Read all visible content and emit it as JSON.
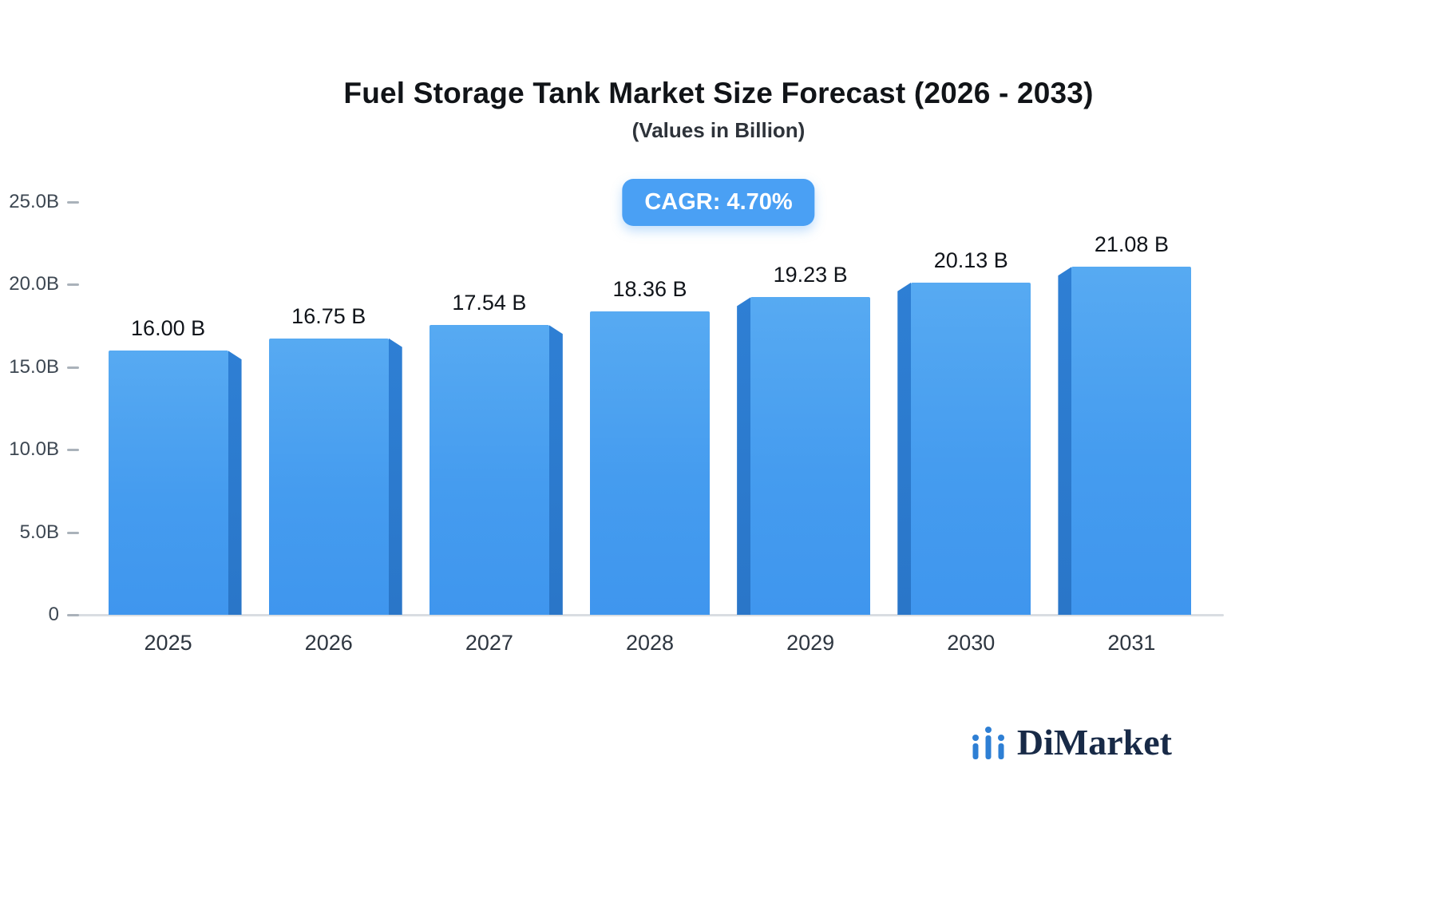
{
  "header": {
    "title": "Fuel Storage Tank Market Size Forecast (2026 - 2033)",
    "subtitle": "(Values in Billion)"
  },
  "badge": {
    "label": "CAGR: 4.70%"
  },
  "chart_data": {
    "type": "bar",
    "title": "Fuel Storage Tank Market Size Forecast (2026 - 2033)",
    "subtitle": "(Values in Billion)",
    "categories": [
      "2025",
      "2026",
      "2027",
      "2028",
      "2029",
      "2030",
      "2031"
    ],
    "values": [
      16.0,
      16.75,
      17.54,
      18.36,
      19.23,
      20.13,
      21.08
    ],
    "value_labels": [
      "16.00 B",
      "16.75 B",
      "17.54 B",
      "18.36 B",
      "19.23 B",
      "20.13 B",
      "21.08 B"
    ],
    "xlabel": "",
    "ylabel": "",
    "ylim": [
      0,
      25
    ],
    "yticks": [
      "25.0B",
      "20.0B",
      "15.0B",
      "10.0B",
      "5.0B",
      "0"
    ],
    "grid": false,
    "legend": false,
    "bar_color": "#459cef",
    "bar_side_color": "#2e7fd4",
    "cagr": "CAGR: 4.70%"
  },
  "logo": {
    "text": "DiMarket",
    "icon": "bar-chart-dots-icon",
    "icon_color": "#2e7fd4",
    "text_color": "#182a47"
  }
}
